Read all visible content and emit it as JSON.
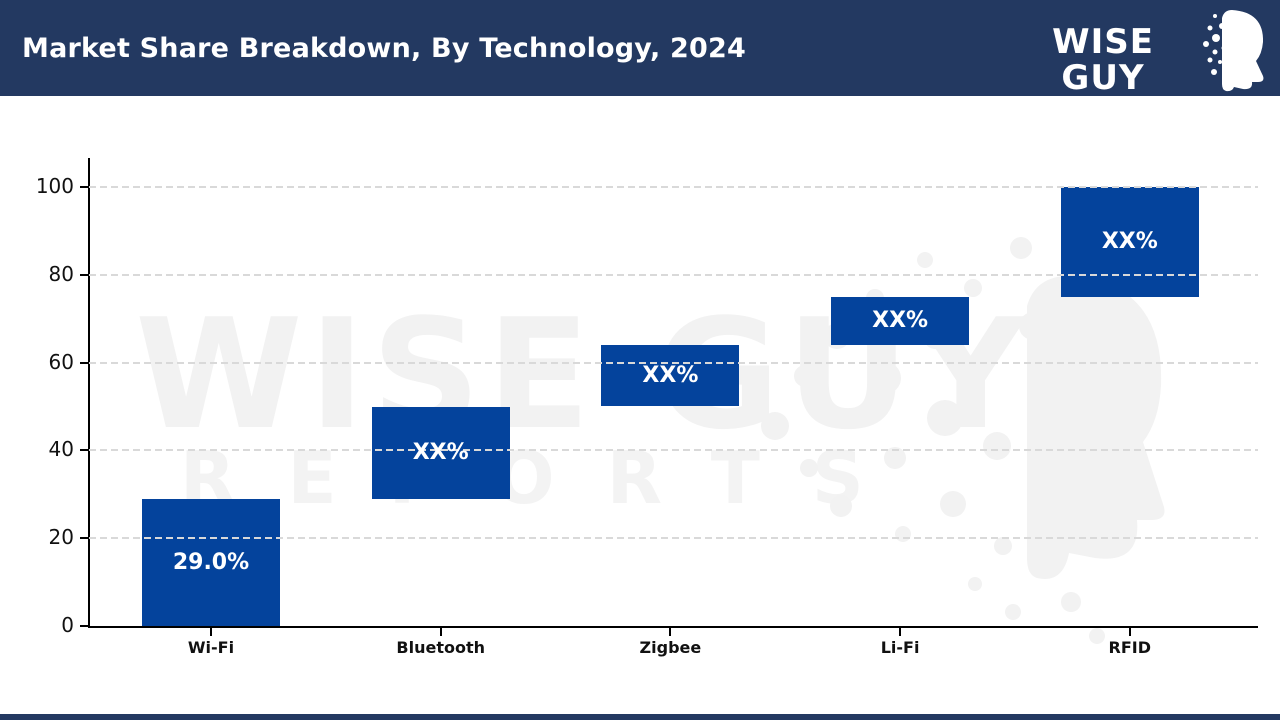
{
  "header": {
    "title": "Market Share Breakdown, By Technology, 2024",
    "logo": {
      "primary": "WISE GUY",
      "secondary": "REPORTS"
    }
  },
  "watermark": {
    "primary": "WISE GUY",
    "secondary": "REPORTS"
  },
  "chart_data": {
    "type": "bar",
    "variant": "waterfall",
    "title": "Market Share Breakdown, By Technology, 2024",
    "categories": [
      "Wi-Fi",
      "Bluetooth",
      "Zigbee",
      "Li-Fi",
      "RFID"
    ],
    "segments": [
      {
        "category": "Wi-Fi",
        "start": 0,
        "end": 29,
        "value": 29,
        "label": "29.0%"
      },
      {
        "category": "Bluetooth",
        "start": 29,
        "end": 50,
        "value": 21,
        "label": "XX%"
      },
      {
        "category": "Zigbee",
        "start": 50,
        "end": 64,
        "value": 14,
        "label": "XX%"
      },
      {
        "category": "Li-Fi",
        "start": 64,
        "end": 75,
        "value": 11,
        "label": "XX%"
      },
      {
        "category": "RFID",
        "start": 75,
        "end": 100,
        "value": 25,
        "label": "XX%"
      }
    ],
    "ylim": [
      0,
      100
    ],
    "yticks": [
      0,
      20,
      40,
      60,
      80,
      100
    ],
    "xlabel": "",
    "ylabel": "",
    "grid": {
      "axis": "y",
      "style": "dashed",
      "drawn_above_bars": true
    },
    "legend": null
  },
  "colors": {
    "header_bg": "#233961",
    "footer_bg": "#233961",
    "bar": "#04439C",
    "bar_label": "#FFFFFF",
    "grid": "#D9D9D9",
    "axis": "#000000",
    "watermark": "#F2F2F2"
  }
}
